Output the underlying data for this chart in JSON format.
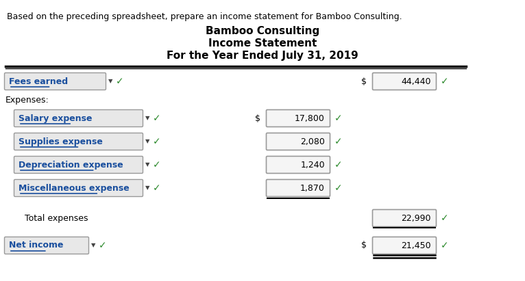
{
  "question_text": "Based on the preceding spreadsheet, prepare an income statement for Bamboo Consulting.",
  "company": "Bamboo Consulting",
  "statement_type": "Income Statement",
  "period": "For the Year Ended July 31, 2019",
  "fees_earned_label": "Fees earned",
  "fees_earned_value": "44,440",
  "expenses_label": "Expenses:",
  "expenses": [
    {
      "label": "Salary expense",
      "value": "17,800",
      "show_dollar": true
    },
    {
      "label": "Supplies expense",
      "value": "2,080",
      "show_dollar": false
    },
    {
      "label": "Depreciation expense",
      "value": "1,240",
      "show_dollar": false
    },
    {
      "label": "Miscellaneous expense",
      "value": "1,870",
      "show_dollar": false
    }
  ],
  "total_expenses_label": "Total expenses",
  "total_expenses_value": "22,990",
  "net_income_label": "Net income",
  "net_income_value": "21,450",
  "bg_color": "#ffffff",
  "text_color": "#000000",
  "link_color": "#1a4f9e",
  "check_color": "#2d8a2d",
  "box_fill_label": "#e8e8e8",
  "box_fill_value": "#f5f5f5",
  "box_edge": "#999999",
  "separator_color": "#000000"
}
